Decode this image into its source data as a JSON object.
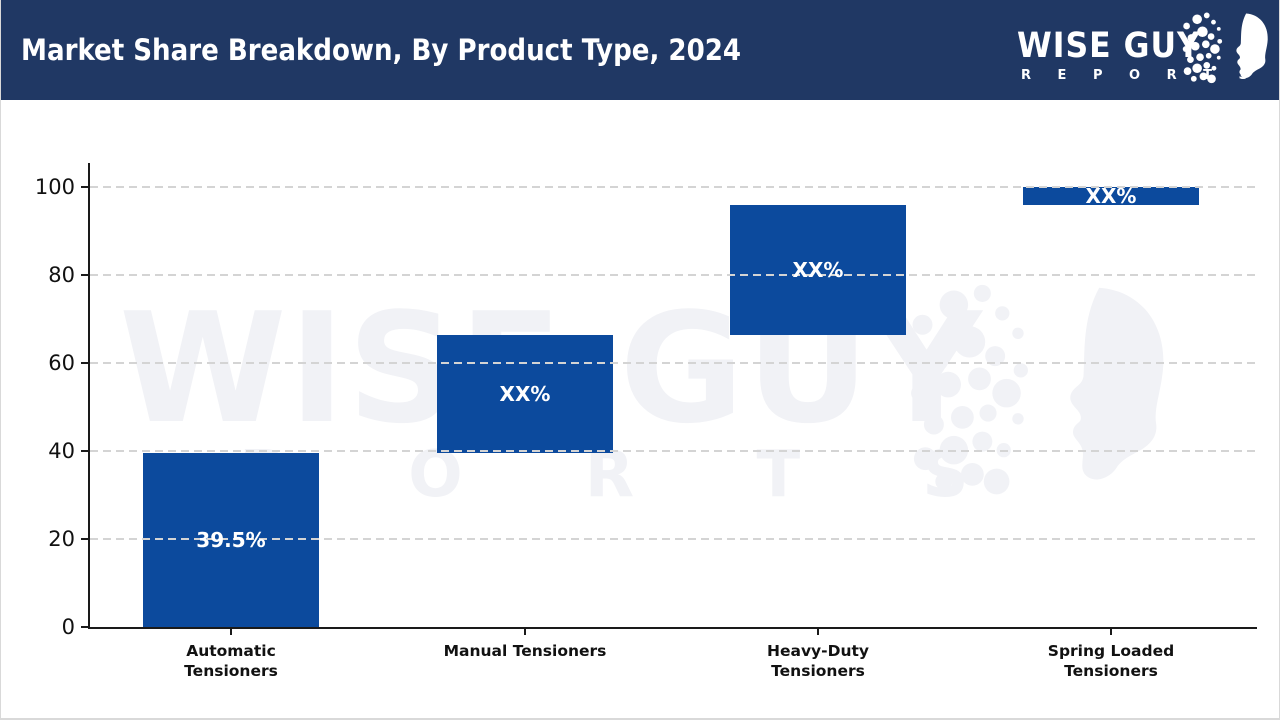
{
  "header": {
    "title": "Market Share Breakdown, By Product Type, 2024",
    "logo": {
      "line1": "WISE GUY",
      "line2": "R E P O R T S"
    }
  },
  "watermark": {
    "line1": "WISE GUY",
    "line2": "P O R T S"
  },
  "colors": {
    "header_bg": "#203864",
    "bar": "#0c4a9d",
    "grid": "#d4d4d4",
    "axis": "#1a1a1a",
    "watermark": "#f1f2f6",
    "value_label": "#ffffff"
  },
  "chart_data": {
    "type": "bar",
    "subtype": "waterfall-stacked",
    "title": "Market Share Breakdown, By Product Type, 2024",
    "xlabel": "",
    "ylabel": "",
    "categories": [
      "Automatic Tensioners",
      "Manual Tensioners",
      "Heavy-Duty Tensioners",
      "Spring Loaded Tensioners"
    ],
    "category_label_lines": [
      [
        "Automatic",
        "Tensioners"
      ],
      [
        "Manual Tensioners"
      ],
      [
        "Heavy-Duty",
        "Tensioners"
      ],
      [
        "Spring Loaded",
        "Tensioners"
      ]
    ],
    "segments": [
      {
        "category": "Automatic Tensioners",
        "label": "39.5%",
        "start": 0,
        "end": 39.5
      },
      {
        "category": "Manual Tensioners",
        "label": "XX%",
        "start": 39.5,
        "end": 66.4
      },
      {
        "category": "Heavy-Duty Tensioners",
        "label": "XX%",
        "start": 66.4,
        "end": 95.9
      },
      {
        "category": "Spring Loaded Tensioners",
        "label": "XX%",
        "start": 95.9,
        "end": 100
      }
    ],
    "yticks": [
      0,
      20,
      40,
      60,
      80,
      100
    ],
    "ylim": [
      0,
      105
    ],
    "grid": "horizontal-dashed",
    "legend": "none"
  }
}
